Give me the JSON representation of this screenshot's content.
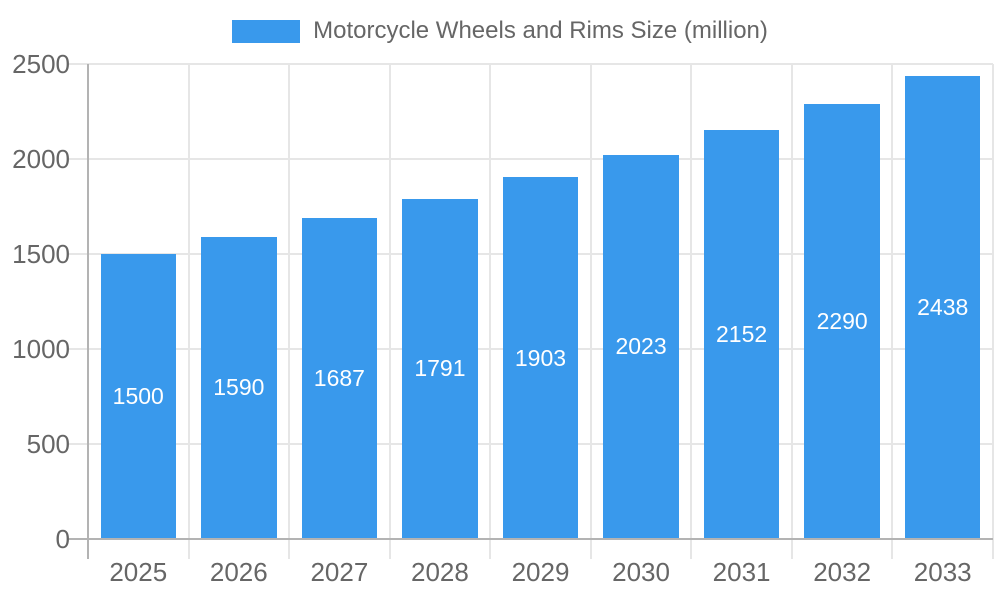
{
  "legend": {
    "label": "Motorcycle Wheels and Rims Size (million)"
  },
  "colors": {
    "bar": "#3999ec",
    "grid": "#e6e6e6",
    "axis": "#b3b3b3",
    "tick_text": "#666666",
    "value_label": "#ffffff",
    "background": "#ffffff"
  },
  "chart_data": {
    "type": "bar",
    "title": "Motorcycle Wheels and Rims Size (million)",
    "categories": [
      "2025",
      "2026",
      "2027",
      "2028",
      "2029",
      "2030",
      "2031",
      "2032",
      "2033"
    ],
    "values": [
      1500,
      1590,
      1687,
      1791,
      1903,
      2023,
      2152,
      2290,
      2438
    ],
    "xlabel": "",
    "ylabel": "",
    "ylim": [
      0,
      2500
    ],
    "yticks": [
      0,
      500,
      1000,
      1500,
      2000,
      2500
    ],
    "grid": true,
    "legend_position": "top",
    "value_labels": "inside-center",
    "bar_width_fraction": 0.75
  }
}
